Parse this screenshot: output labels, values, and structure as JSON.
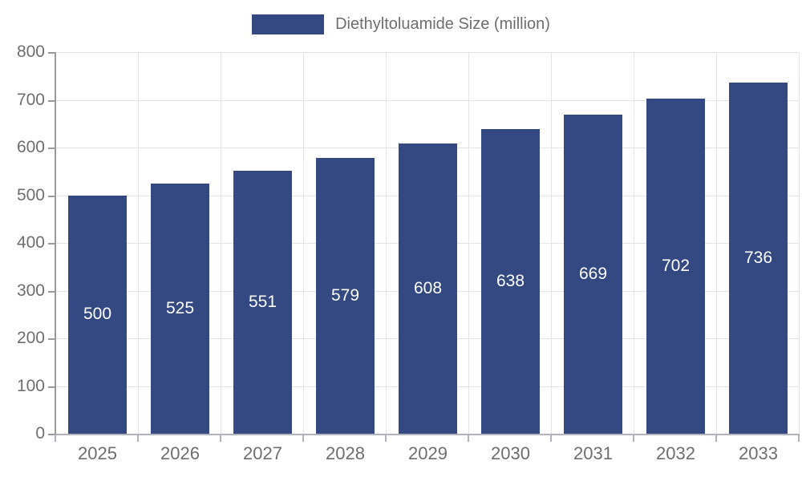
{
  "chart_data": {
    "type": "bar",
    "title": "",
    "series_name": "Diethyltoluamide Size (million)",
    "categories": [
      "2025",
      "2026",
      "2027",
      "2028",
      "2029",
      "2030",
      "2031",
      "2032",
      "2033"
    ],
    "values": [
      500,
      525,
      551,
      579,
      608,
      638,
      669,
      702,
      736
    ],
    "xlabel": "",
    "ylabel": "",
    "ylim": [
      0,
      800
    ],
    "y_ticks": [
      0,
      100,
      200,
      300,
      400,
      500,
      600,
      700,
      800
    ],
    "grid": "on",
    "legend_position": "top-center",
    "bar_color": "#344982",
    "label_color": "#ffffff",
    "axis_text_color": "#6e6e6e"
  }
}
